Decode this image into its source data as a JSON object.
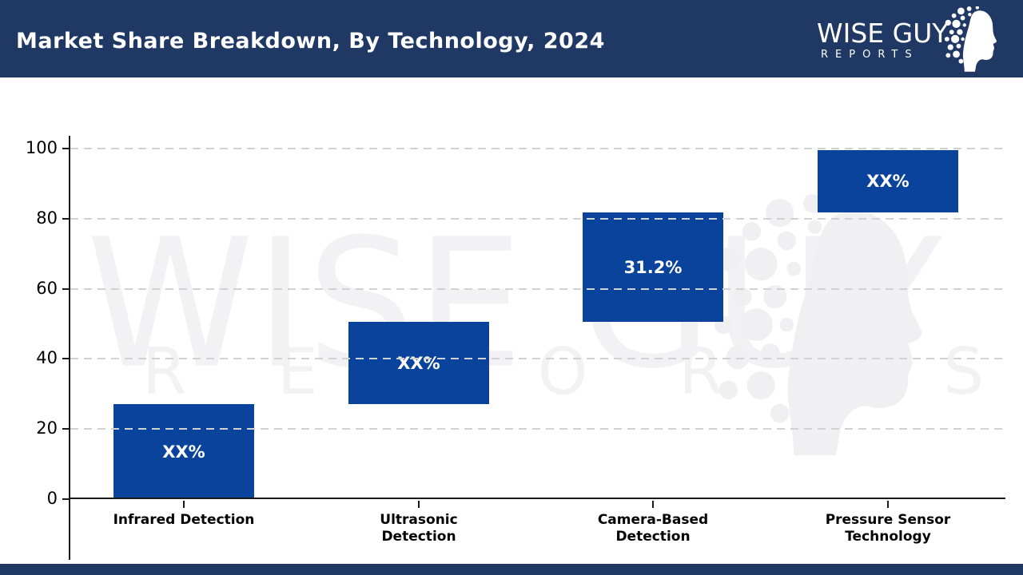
{
  "header": {
    "title": "Market Share Breakdown, By Technology, 2024",
    "logo": {
      "primary": "WISE GUY",
      "secondary": "REPORTS"
    }
  },
  "watermark": {
    "primary": "WISE GUY",
    "secondary": "R E P O R T S"
  },
  "chart_data": {
    "type": "bar",
    "subtype": "waterfall",
    "title": "Market Share Breakdown, By Technology, 2024",
    "categories": [
      {
        "label": "Infrared Detection",
        "lines": [
          "Infrared Detection"
        ]
      },
      {
        "label": "Ultrasonic Detection",
        "lines": [
          "Ultrasonic",
          "Detection"
        ]
      },
      {
        "label": "Camera-Based Detection",
        "lines": [
          "Camera-Based",
          "Detection"
        ]
      },
      {
        "label": "Pressure Sensor Technology",
        "lines": [
          "Pressure Sensor",
          "Technology"
        ]
      }
    ],
    "bars": [
      {
        "category": "Infrared Detection",
        "start": 0,
        "end": 27,
        "label": "XX%"
      },
      {
        "category": "Ultrasonic Detection",
        "start": 27,
        "end": 50.5,
        "label": "XX%"
      },
      {
        "category": "Camera-Based Detection",
        "start": 50.5,
        "end": 81.7,
        "label": "31.2%"
      },
      {
        "category": "Pressure Sensor Technology",
        "start": 81.7,
        "end": 99.5,
        "label": "XX%"
      }
    ],
    "ylim": [
      0,
      100
    ],
    "yticks": [
      0,
      20,
      40,
      60,
      80,
      100
    ],
    "grid": "dashed horizontal, drawn over bars",
    "legend": "none"
  },
  "colors": {
    "header_bg": "#1f3864",
    "footer_bg": "#1f3864",
    "bar": "#0a439c",
    "bar_label": "#ffffff",
    "grid": "#d2d2d2",
    "axis": "#1a1a1a",
    "watermark": "#f2f2f4"
  }
}
